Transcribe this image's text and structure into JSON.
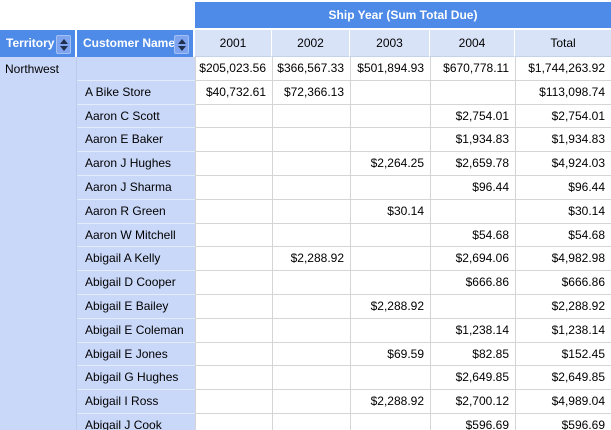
{
  "colors": {
    "header-blue": "#4E8AE7",
    "year-row-bg": "#D9E3F7",
    "side-col-bg": "#C9D7F8",
    "grid-line": "#D5D5D5"
  },
  "icons": {
    "sort": "sort-asc-desc-arrows"
  },
  "table": {
    "group_header": "Ship Year (Sum Total Due)",
    "territory_header": "Territory",
    "customer_header": "Customer Name",
    "column_headers": {
      "y2001": "2001",
      "y2002": "2002",
      "y2003": "2003",
      "y2004": "2004",
      "total": "Total"
    },
    "territory": "Northwest",
    "rows": [
      {
        "customer": "",
        "y2001": "$205,023.56",
        "y2002": "$366,567.33",
        "y2003": "$501,894.93",
        "y2004": "$670,778.11",
        "total": "$1,744,263.92"
      },
      {
        "customer": "A Bike Store",
        "y2001": "$40,732.61",
        "y2002": "$72,366.13",
        "y2003": "",
        "y2004": "",
        "total": "$113,098.74"
      },
      {
        "customer": "Aaron C Scott",
        "y2001": "",
        "y2002": "",
        "y2003": "",
        "y2004": "$2,754.01",
        "total": "$2,754.01"
      },
      {
        "customer": "Aaron E Baker",
        "y2001": "",
        "y2002": "",
        "y2003": "",
        "y2004": "$1,934.83",
        "total": "$1,934.83"
      },
      {
        "customer": "Aaron J Hughes",
        "y2001": "",
        "y2002": "",
        "y2003": "$2,264.25",
        "y2004": "$2,659.78",
        "total": "$4,924.03"
      },
      {
        "customer": "Aaron J Sharma",
        "y2001": "",
        "y2002": "",
        "y2003": "",
        "y2004": "$96.44",
        "total": "$96.44"
      },
      {
        "customer": "Aaron R Green",
        "y2001": "",
        "y2002": "",
        "y2003": "$30.14",
        "y2004": "",
        "total": "$30.14"
      },
      {
        "customer": "Aaron W Mitchell",
        "y2001": "",
        "y2002": "",
        "y2003": "",
        "y2004": "$54.68",
        "total": "$54.68"
      },
      {
        "customer": "Abigail A Kelly",
        "y2001": "",
        "y2002": "$2,288.92",
        "y2003": "",
        "y2004": "$2,694.06",
        "total": "$4,982.98"
      },
      {
        "customer": "Abigail D Cooper",
        "y2001": "",
        "y2002": "",
        "y2003": "",
        "y2004": "$666.86",
        "total": "$666.86"
      },
      {
        "customer": "Abigail E Bailey",
        "y2001": "",
        "y2002": "",
        "y2003": "$2,288.92",
        "y2004": "",
        "total": "$2,288.92"
      },
      {
        "customer": "Abigail E Coleman",
        "y2001": "",
        "y2002": "",
        "y2003": "",
        "y2004": "$1,238.14",
        "total": "$1,238.14"
      },
      {
        "customer": "Abigail E Jones",
        "y2001": "",
        "y2002": "",
        "y2003": "$69.59",
        "y2004": "$82.85",
        "total": "$152.45"
      },
      {
        "customer": "Abigail G Hughes",
        "y2001": "",
        "y2002": "",
        "y2003": "",
        "y2004": "$2,649.85",
        "total": "$2,649.85"
      },
      {
        "customer": "Abigail I Ross",
        "y2001": "",
        "y2002": "",
        "y2003": "$2,288.92",
        "y2004": "$2,700.12",
        "total": "$4,989.04"
      },
      {
        "customer": "Abigail J Cook",
        "y2001": "",
        "y2002": "",
        "y2003": "",
        "y2004": "$596.69",
        "total": "$596.69"
      }
    ]
  }
}
